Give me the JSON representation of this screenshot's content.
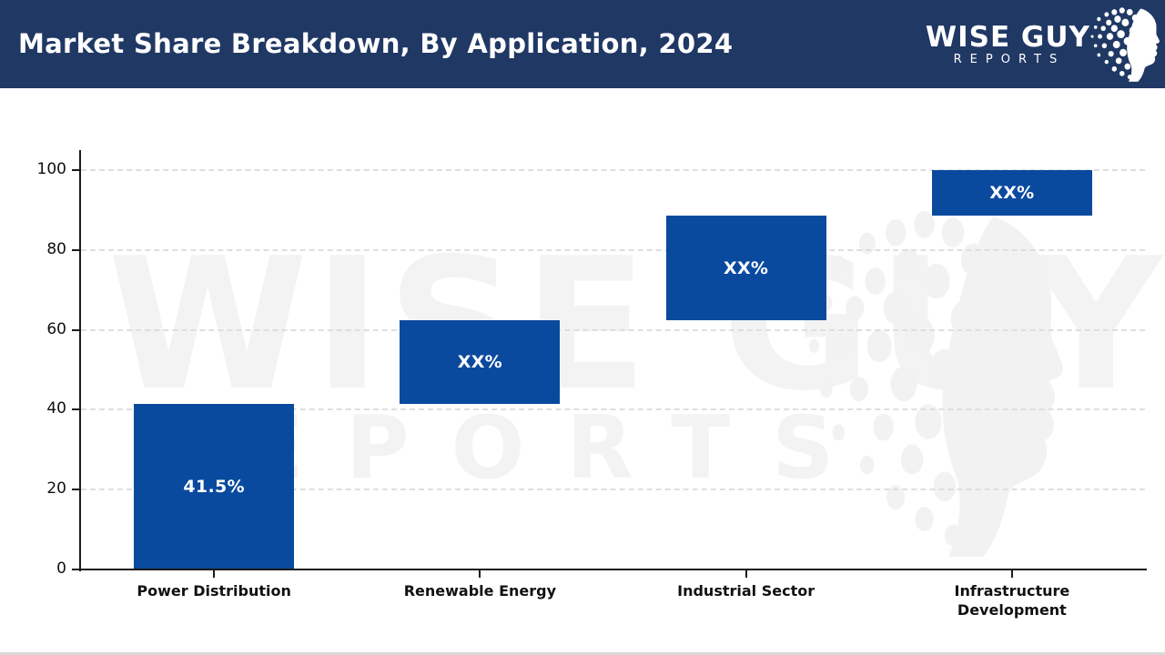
{
  "header": {
    "title": "Market Share Breakdown, By Application, 2024",
    "logo": {
      "line1": "WISE GUY",
      "line2": "REPORTS"
    }
  },
  "watermark": {
    "line1": "WISE GUY",
    "line2": "REPORTS"
  },
  "chart_data": {
    "type": "bar",
    "subtype": "waterfall",
    "title": "Market Share Breakdown, By Application, 2024",
    "categories": [
      "Power Distribution",
      "Renewable Energy",
      "Industrial Sector",
      "Infrastructure\nDevelopment"
    ],
    "segments": [
      {
        "category": "Power Distribution",
        "start": 0,
        "end": 41.5,
        "label": "41.5%"
      },
      {
        "category": "Renewable Energy",
        "start": 41.5,
        "end": 62.5,
        "label": "XX%"
      },
      {
        "category": "Industrial Sector",
        "start": 62.5,
        "end": 88.5,
        "label": "XX%"
      },
      {
        "category": "Infrastructure Development",
        "start": 88.5,
        "end": 100,
        "label": "XX%"
      }
    ],
    "yticks": [
      0,
      20,
      40,
      60,
      80,
      100
    ],
    "ylim": [
      0,
      105
    ],
    "xlabel": "",
    "ylabel": "",
    "grid": true,
    "legend": "none",
    "bar_color": "#0a4a9e",
    "bar_label_color": "#ffffff"
  },
  "colors": {
    "header_bg": "#203864",
    "bar": "#0a4a9e",
    "bar_label": "#ffffff",
    "title": "#ffffff",
    "watermark": "#f3f3f3",
    "grid": "#dedede",
    "axis": "#1a1a1a",
    "footer_line": "#d9d9d9",
    "page_bg": "#ffffff"
  }
}
